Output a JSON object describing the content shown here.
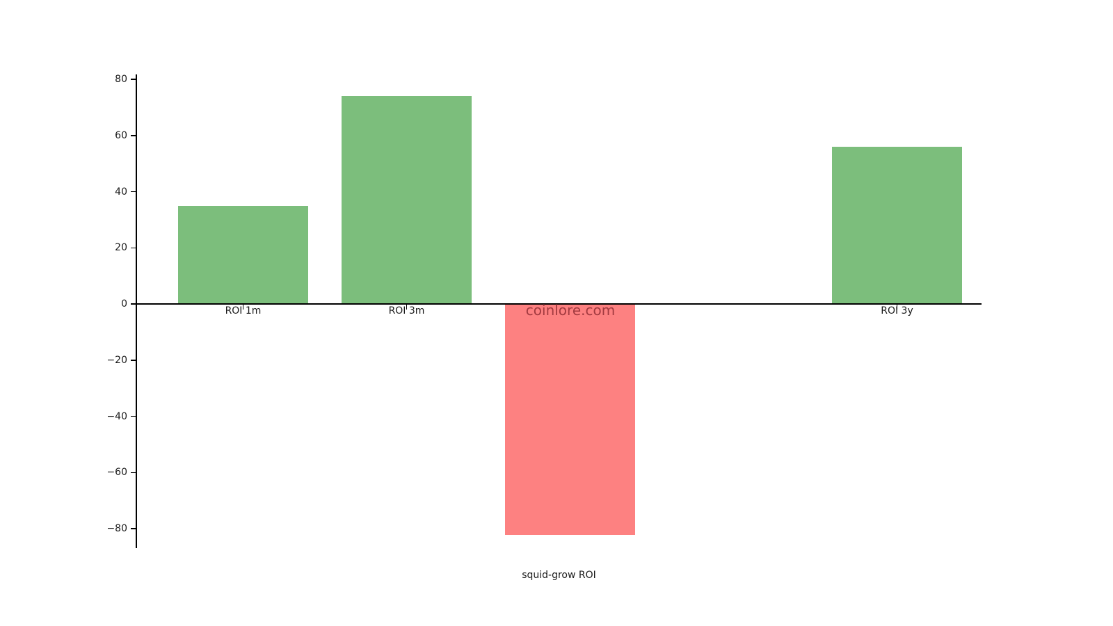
{
  "page": {
    "background_color": "#ffffff"
  },
  "chart_data": {
    "type": "bar",
    "title": "",
    "xlabel": "squid-grow ROI",
    "ylabel": "",
    "watermark": "coinlore.com",
    "categories": [
      "ROI 1m",
      "ROI 3m",
      "",
      "ROI 3y"
    ],
    "values": [
      35,
      74,
      -82,
      56
    ],
    "x_slots": [
      0,
      1,
      2,
      4
    ],
    "bar_colors": [
      "#7cbe7c",
      "#7cbe7c",
      "#fd8181",
      "#7cbe7c"
    ],
    "positive_color": "#7cbe7c",
    "negative_color": "#fd8181",
    "axis_color": "#000000",
    "tick_text_color": "#1a1a1a",
    "watermark_color": "#a23a40",
    "y_ticks": [
      {
        "value": 80,
        "label": "80"
      },
      {
        "value": 60,
        "label": "60"
      },
      {
        "value": 40,
        "label": "40"
      },
      {
        "value": 20,
        "label": "20"
      },
      {
        "value": 0,
        "label": "0"
      },
      {
        "value": -20,
        "label": "−20"
      },
      {
        "value": -40,
        "label": "−40"
      },
      {
        "value": -60,
        "label": "−60"
      },
      {
        "value": -80,
        "label": "−80"
      }
    ],
    "ylim": [
      -87,
      82
    ],
    "grid": false,
    "legend": null
  }
}
